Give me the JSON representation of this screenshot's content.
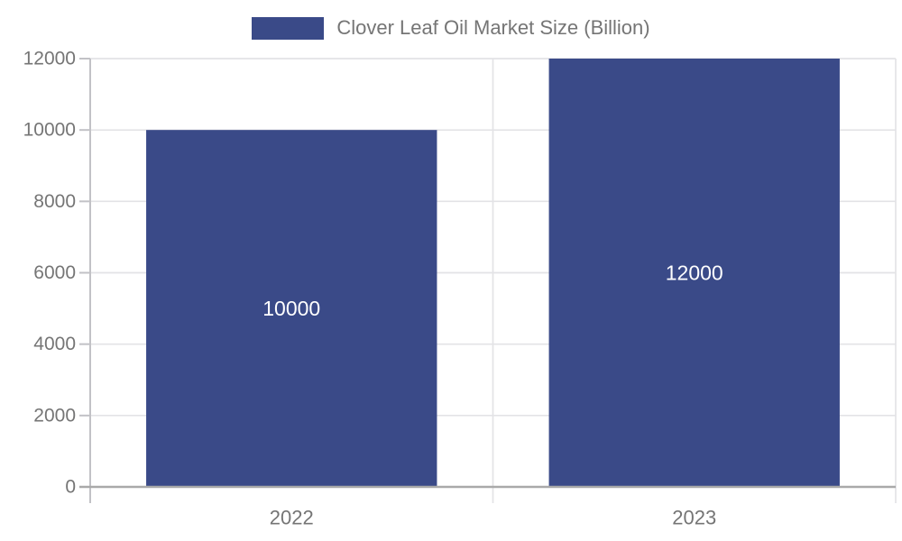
{
  "chart_data": {
    "type": "bar",
    "categories": [
      "2022",
      "2023"
    ],
    "values": [
      10000,
      12000
    ],
    "bar_labels": [
      "10000",
      "12000"
    ],
    "series_name": "Clover Leaf Oil Market Size (Billion)",
    "title": "",
    "xlabel": "",
    "ylabel": "",
    "ylim": [
      0,
      12000
    ],
    "yticks": [
      0,
      2000,
      4000,
      6000,
      8000,
      10000,
      12000
    ],
    "ytick_labels": [
      "0",
      "2000",
      "4000",
      "6000",
      "8000",
      "10000",
      "12000"
    ],
    "grid": true,
    "legend_position": "top-center",
    "colors": {
      "bar_fill": "#3A4A88",
      "bar_label_text": "#FFFFFF",
      "axis_text": "#757575",
      "gridline": "#E3E3E6",
      "baseline": "#A9A9A9",
      "y_axis_line": "#C2C2C6",
      "background": "#FFFFFF"
    }
  }
}
